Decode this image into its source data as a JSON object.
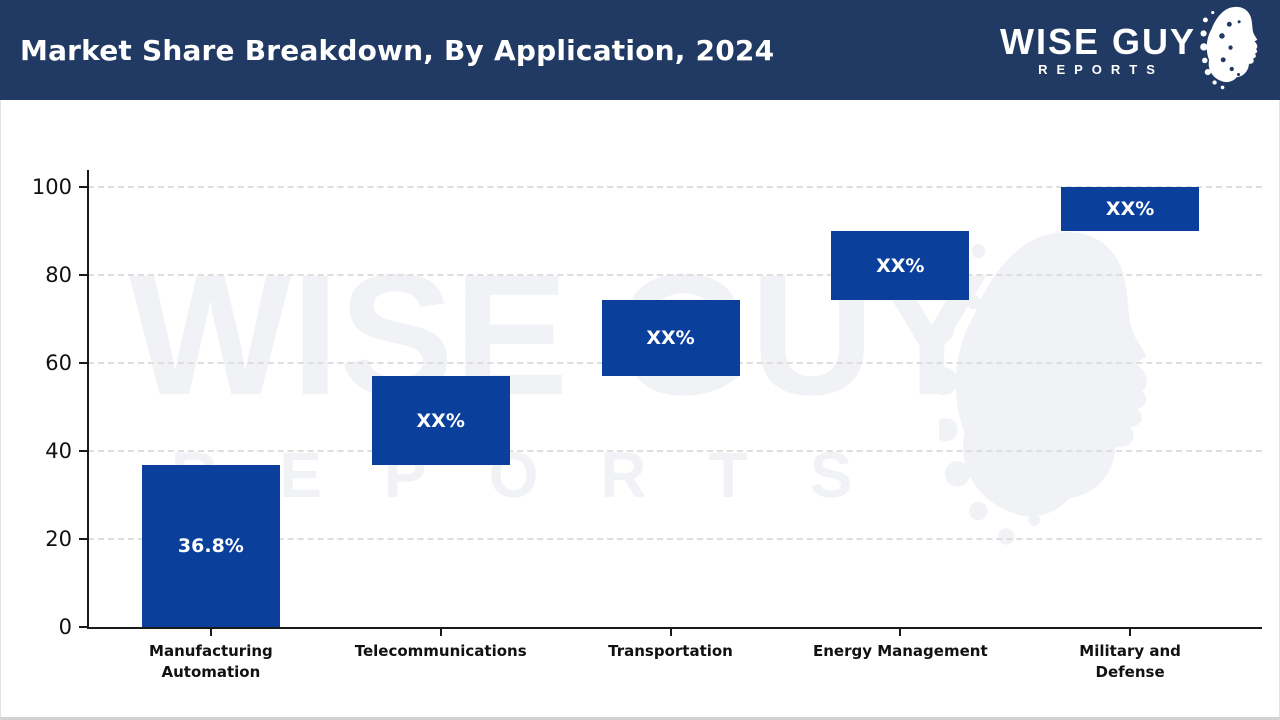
{
  "header": {
    "title": "Market Share Breakdown, By Application, 2024",
    "bg_color": "#213a63",
    "logo": {
      "line1": "WISE GUY",
      "line2": "REPORTS"
    }
  },
  "watermark": {
    "line1": "WISE GUY",
    "line2": "REPORTS"
  },
  "chart_data": {
    "type": "bar",
    "subtype": "waterfall",
    "title": "Market Share Breakdown, By Application, 2024",
    "categories": [
      "Manufacturing\nAutomation",
      "Telecommunications",
      "Transportation",
      "Energy Management",
      "Military and\nDefense"
    ],
    "segments": [
      {
        "category": "Manufacturing Automation",
        "start": 0,
        "end": 36.8,
        "value": 36.8,
        "label": "36.8%"
      },
      {
        "category": "Telecommunications",
        "start": 36.8,
        "end": 57.0,
        "value": 20.2,
        "label": "XX%"
      },
      {
        "category": "Transportation",
        "start": 57.0,
        "end": 74.3,
        "value": 17.3,
        "label": "XX%"
      },
      {
        "category": "Energy Management",
        "start": 74.3,
        "end": 90.0,
        "value": 15.7,
        "label": "XX%"
      },
      {
        "category": "Military and Defense",
        "start": 90.0,
        "end": 100.0,
        "value": 10.0,
        "label": "XX%"
      }
    ],
    "y_ticks": [
      0,
      20,
      40,
      60,
      80,
      100
    ],
    "ylim": [
      0,
      100
    ],
    "xlabel": "",
    "ylabel": "",
    "grid": "horizontal-dashed",
    "legend": "none",
    "bar_color": "#0a409c",
    "bar_label_color": "#ffffff",
    "axis_color": "#1a1a1a",
    "grid_color": "#dedede"
  }
}
